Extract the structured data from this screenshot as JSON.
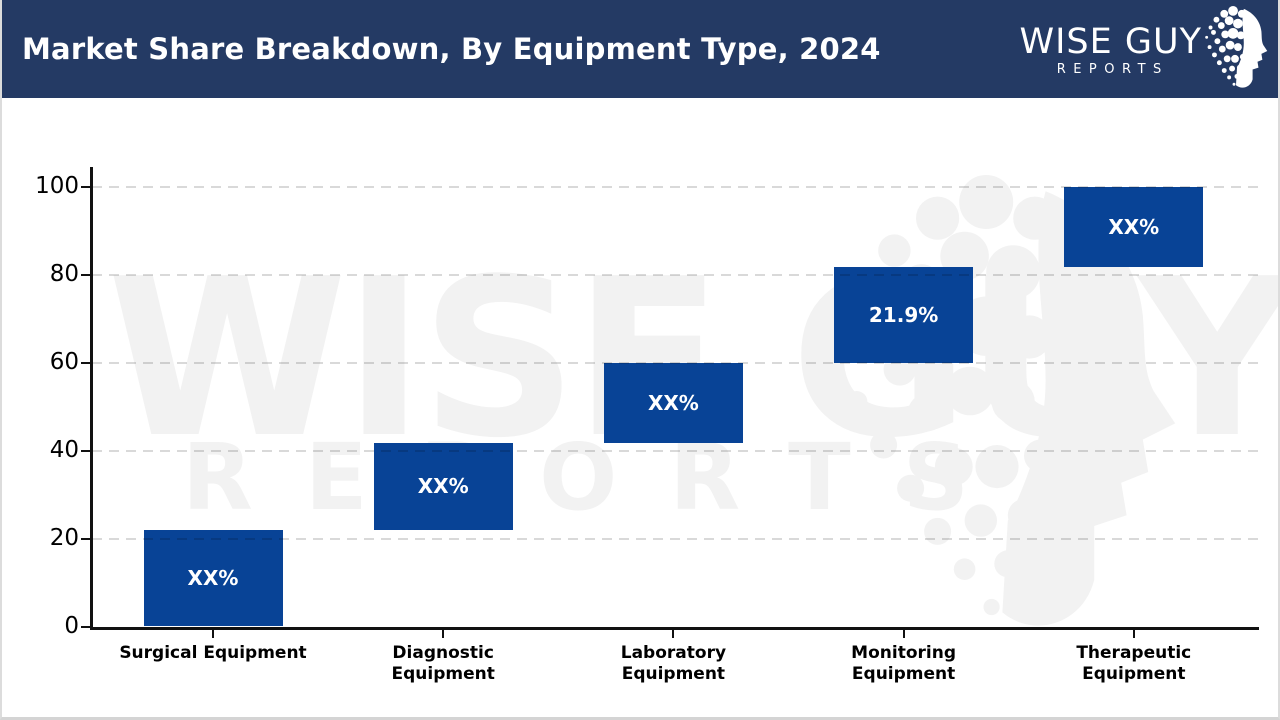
{
  "header": {
    "title": "Market Share Breakdown, By Equipment Type, 2024",
    "logo": {
      "brand": "WISE GUY",
      "sub": "REPORTS",
      "head_icon": "dotted-head-profile-icon"
    }
  },
  "watermark": {
    "brand": "WISE GUY",
    "sub": "REPORTS",
    "head_icon": "dotted-head-profile-icon"
  },
  "colors": {
    "header_bg": "#243a64",
    "bar": "#084396",
    "bar_label_text": "#ffffff",
    "axis": "#111111",
    "gridline": "#d6d6d6",
    "watermark": "#f2f2f2"
  },
  "chart_data": {
    "type": "bar",
    "subtype": "waterfall",
    "title": "Market Share Breakdown, By Equipment Type, 2024",
    "xlabel": "",
    "ylabel": "",
    "ylim": [
      0,
      100
    ],
    "yticks": [
      0,
      20,
      40,
      60,
      80,
      100
    ],
    "grid": "horizontal-dashed",
    "legend": "none",
    "categories": [
      "Surgical Equipment",
      "Diagnostic Equipment",
      "Laboratory Equipment",
      "Monitoring Equipment",
      "Therapeutic Equipment"
    ],
    "bars": [
      {
        "category": "Surgical Equipment",
        "label_lines": [
          "Surgical Equipment"
        ],
        "start": 0,
        "end": 21.9,
        "height": 21.9,
        "value_label": "XX%"
      },
      {
        "category": "Diagnostic Equipment",
        "label_lines": [
          "Diagnostic",
          "Equipment"
        ],
        "start": 21.9,
        "end": 41.8,
        "height": 19.9,
        "value_label": "XX%"
      },
      {
        "category": "Laboratory Equipment",
        "label_lines": [
          "Laboratory",
          "Equipment"
        ],
        "start": 41.8,
        "end": 59.9,
        "height": 18.1,
        "value_label": "XX%"
      },
      {
        "category": "Monitoring Equipment",
        "label_lines": [
          "Monitoring",
          "Equipment"
        ],
        "start": 59.9,
        "end": 81.8,
        "height": 21.9,
        "value_label": "21.9%"
      },
      {
        "category": "Therapeutic Equipment",
        "label_lines": [
          "Therapeutic",
          "Equipment"
        ],
        "start": 81.8,
        "end": 100,
        "height": 18.2,
        "value_label": "XX%"
      }
    ]
  }
}
